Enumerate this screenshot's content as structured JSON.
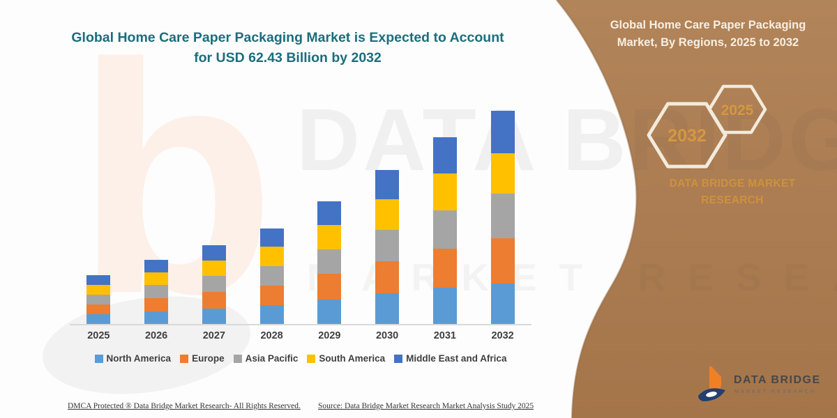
{
  "main_title": {
    "text": "Global Home Care Paper Packaging Market is Expected to Account for USD 62.43 Billion by 2032"
  },
  "side_panel": {
    "title": "Global Home Care Paper Packaging Market, By Regions, 2025 to 2032",
    "hexagons": [
      {
        "label": "2032"
      },
      {
        "label": "2025"
      }
    ],
    "brand_caption": "DATA BRIDGE MARKET RESEARCH",
    "background_color": "#AD7D51",
    "accent_gold": "#D6973F"
  },
  "watermark": {
    "letter": "b",
    "primary": "DATA BRIDGE",
    "secondary": "MARKET RESEARCH"
  },
  "logo": {
    "name": "DATA BRIDGE",
    "subname": "MARKET RESEARCH"
  },
  "footer": {
    "left": "DMCA Protected ® Data Bridge Market Research-  All Rights Reserved.",
    "right": "Source: Data Bridge Market Research Market Analysis Study 2025"
  },
  "chart_data": {
    "type": "bar",
    "stacked": true,
    "title": "Global Home Care Paper Packaging Market is Expected to Account for USD 62.43 Billion by 2032",
    "categories": [
      "2025",
      "2026",
      "2027",
      "2028",
      "2029",
      "2030",
      "2031",
      "2032"
    ],
    "series": [
      {
        "name": "North America",
        "color": "#5B9BD5",
        "values": [
          2.8,
          3.7,
          4.5,
          5.5,
          7.2,
          9.0,
          10.6,
          11.9
        ]
      },
      {
        "name": "Europe",
        "color": "#ED7D31",
        "values": [
          3.0,
          3.9,
          4.8,
          5.8,
          7.4,
          9.4,
          11.5,
          13.3
        ]
      },
      {
        "name": "Asia Pacific",
        "color": "#A5A5A5",
        "values": [
          2.8,
          3.8,
          4.7,
          5.7,
          7.3,
          9.2,
          11.2,
          12.9
        ]
      },
      {
        "name": "South America",
        "color": "#FFC000",
        "values": [
          2.9,
          3.8,
          4.6,
          5.6,
          7.1,
          9.0,
          10.8,
          11.9
        ]
      },
      {
        "name": "Middle East and Africa",
        "color": "#4472C4",
        "values": [
          2.8,
          3.6,
          4.5,
          5.4,
          6.9,
          8.5,
          10.6,
          12.43
        ]
      }
    ],
    "totals_usd_billion": [
      14.3,
      18.8,
      23.1,
      28.0,
      35.9,
      45.1,
      54.7,
      62.43
    ],
    "value_unit": "USD Billion",
    "xlabel": "",
    "ylabel": "",
    "ylim": [
      0,
      65
    ],
    "y_axis_visible": false,
    "gridlines": false,
    "legend_position": "bottom"
  }
}
